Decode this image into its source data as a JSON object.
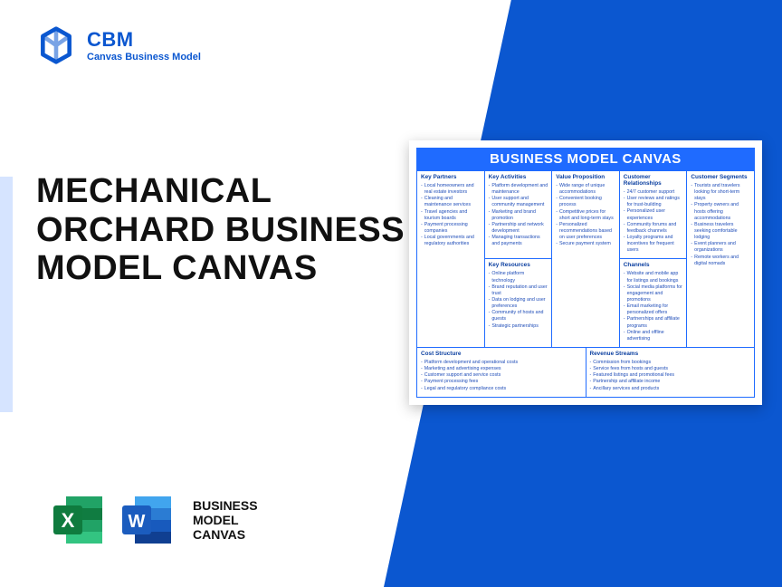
{
  "colors": {
    "primary": "#0b57d0",
    "bright": "#1f6bff",
    "accent": "#d6e4ff",
    "excel_dark": "#0f7b3e",
    "excel_light": "#21a366",
    "word_dark": "#1b5cbe",
    "word_light": "#2b7cd3"
  },
  "logo": {
    "brand": "CBM",
    "sub": "Canvas Business Model"
  },
  "title": "MECHANICAL ORCHARD BUSINESS MODEL CANVAS",
  "apps_label": "BUSINESS\nMODEL\nCANVAS",
  "apps": {
    "excel_letter": "X",
    "word_letter": "W"
  },
  "canvas": {
    "header": "BUSINESS MODEL CANVAS",
    "blocks": {
      "key_partners": {
        "title": "Key Partners",
        "items": [
          "Local homeowners and real estate investors",
          "Cleaning and maintenance services",
          "Travel agencies and tourism boards",
          "Payment processing companies",
          "Local governments and regulatory authorities"
        ]
      },
      "key_activities": {
        "title": "Key Activities",
        "items": [
          "Platform development and maintenance",
          "User support and community management",
          "Marketing and brand promotion",
          "Partnership and network development",
          "Managing transactions and payments"
        ]
      },
      "value_proposition": {
        "title": "Value Proposition",
        "items": [
          "Wide range of unique accommodations",
          "Convenient booking process",
          "Competitive prices for short and long-term stays",
          "Personalized recommendations based on user preferences",
          "Secure payment system"
        ]
      },
      "customer_relationships": {
        "title": "Customer Relationships",
        "items": [
          "24/7 customer support",
          "User reviews and ratings for trust-building",
          "Personalized user experiences",
          "Community forums and feedback channels",
          "Loyalty programs and incentives for frequent users"
        ]
      },
      "customer_segments": {
        "title": "Customer Segments",
        "items": [
          "Tourists and travelers looking for short-term stays",
          "Property owners and hosts offering accommodations",
          "Business travelers seeking comfortable lodging",
          "Event planners and organizations",
          "Remote workers and digital nomads"
        ]
      },
      "key_resources": {
        "title": "Key Resources",
        "items": [
          "Online platform technology",
          "Brand reputation and user trust",
          "Data on lodging and user preferences",
          "Community of hosts and guests",
          "Strategic partnerships"
        ]
      },
      "channels": {
        "title": "Channels",
        "items": [
          "Website and mobile app for listings and bookings",
          "Social media platforms for engagement and promotions",
          "Email marketing for personalized offers",
          "Partnerships and affiliate programs",
          "Online and offline advertising"
        ]
      },
      "cost_structure": {
        "title": "Cost Structure",
        "items": [
          "Platform development and operational costs",
          "Marketing and advertising expenses",
          "Customer support and service costs",
          "Payment processing fees",
          "Legal and regulatory compliance costs"
        ]
      },
      "revenue_streams": {
        "title": "Revenue Streams",
        "items": [
          "Commission from bookings",
          "Service fees from hosts and guests",
          "Featured listings and promotional fees",
          "Partnership and affiliate income",
          "Ancillary services and products"
        ]
      }
    }
  }
}
